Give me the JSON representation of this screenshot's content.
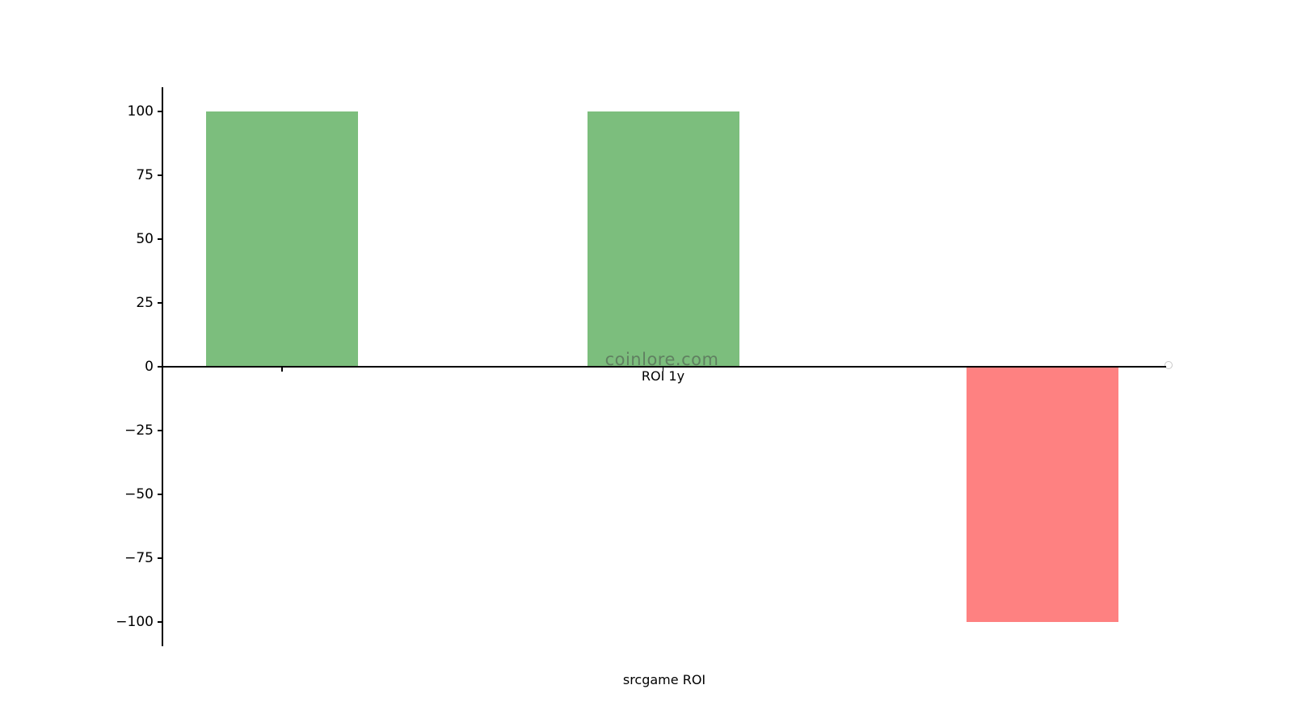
{
  "chart_data": {
    "type": "bar",
    "title": "",
    "xlabel": "srcgame ROI",
    "ylabel": "",
    "categories": [
      "",
      "ROI 1y",
      ""
    ],
    "values": [
      100,
      100,
      -100
    ],
    "bar_colors": [
      "#7cbe7d",
      "#7cbe7d",
      "#fe8181"
    ],
    "positive_color": "#7cbe7d",
    "negative_color": "#fe8181",
    "yticks": [
      100,
      75,
      50,
      25,
      0,
      -25,
      -50,
      -75,
      -100
    ],
    "ylim": [
      -110,
      110
    ],
    "grid": false,
    "legend_position": "none",
    "watermark": "coinlore.com"
  }
}
